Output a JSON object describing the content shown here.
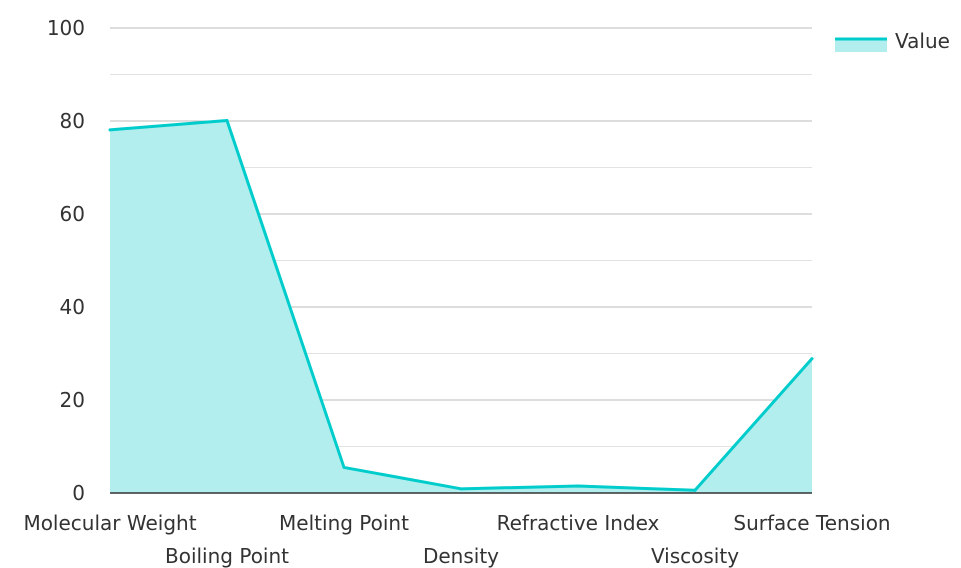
{
  "chart_data": {
    "type": "area",
    "categories": [
      "Molecular Weight",
      "Boiling Point",
      "Melting Point",
      "Density",
      "Refractive Index",
      "Viscosity",
      "Surface Tension"
    ],
    "series": [
      {
        "name": "Value",
        "values": [
          78.1,
          80.1,
          5.5,
          0.9,
          1.5,
          0.6,
          28.9
        ],
        "color": "#00CCCC",
        "fill": "#B2EEEE"
      }
    ],
    "ylim": [
      0,
      100
    ],
    "yticks": [
      0,
      20,
      40,
      60,
      80,
      100
    ],
    "grid": true,
    "legend": "top-right",
    "colors": {
      "major_grid": "#BBBBBB",
      "minor_grid": "#E2E2E2",
      "axis": "#333333",
      "text": "#333333"
    }
  }
}
